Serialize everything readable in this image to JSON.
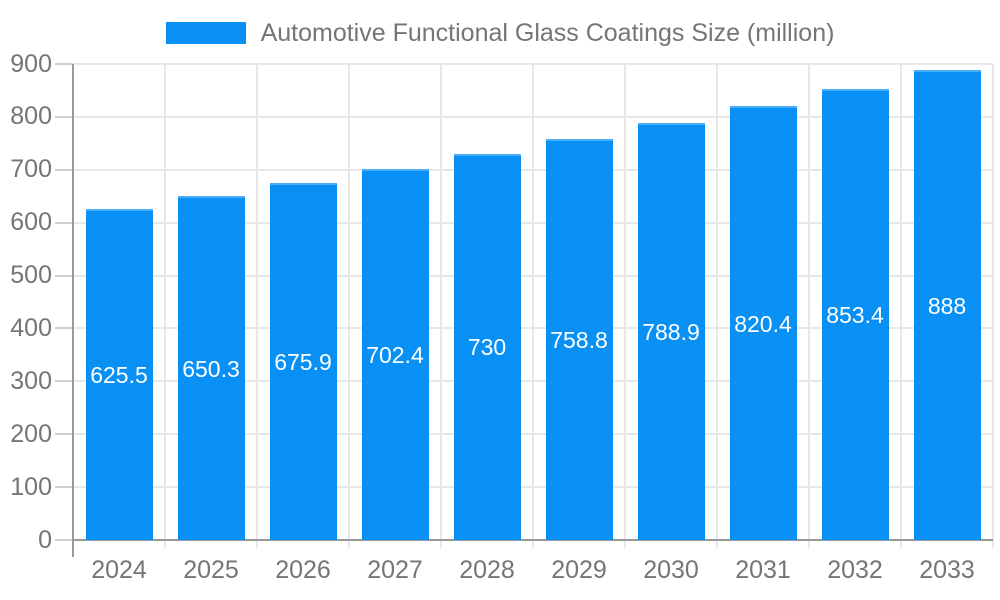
{
  "chart_data": {
    "type": "bar",
    "title": "Automotive Functional Glass Coatings Size (million)",
    "legend_position": "top",
    "categories": [
      "2024",
      "2025",
      "2026",
      "2027",
      "2028",
      "2029",
      "2030",
      "2031",
      "2032",
      "2033"
    ],
    "series": [
      {
        "name": "Automotive Functional Glass Coatings Size (million)",
        "values": [
          625.5,
          650.3,
          675.9,
          702.4,
          730,
          758.8,
          788.9,
          820.4,
          853.4,
          888
        ],
        "labels": [
          "625.5",
          "650.3",
          "675.9",
          "702.4",
          "730",
          "758.8",
          "788.9",
          "820.4",
          "853.4",
          "888"
        ]
      }
    ],
    "xlabel": "",
    "ylabel": "",
    "ylim": [
      0,
      900
    ],
    "yticks": [
      "0",
      "100",
      "200",
      "300",
      "400",
      "500",
      "600",
      "700",
      "800",
      "900"
    ],
    "grid": true,
    "colors": {
      "bar_fill": "#0990f5",
      "bar_top_edge": "#4badf7",
      "gridline": "#e8e8e8",
      "axis_line": "#9a9a9a",
      "tick_mark": "#cfcfcf",
      "label_text": "#757575",
      "bar_label_text": "#ffffff"
    }
  }
}
